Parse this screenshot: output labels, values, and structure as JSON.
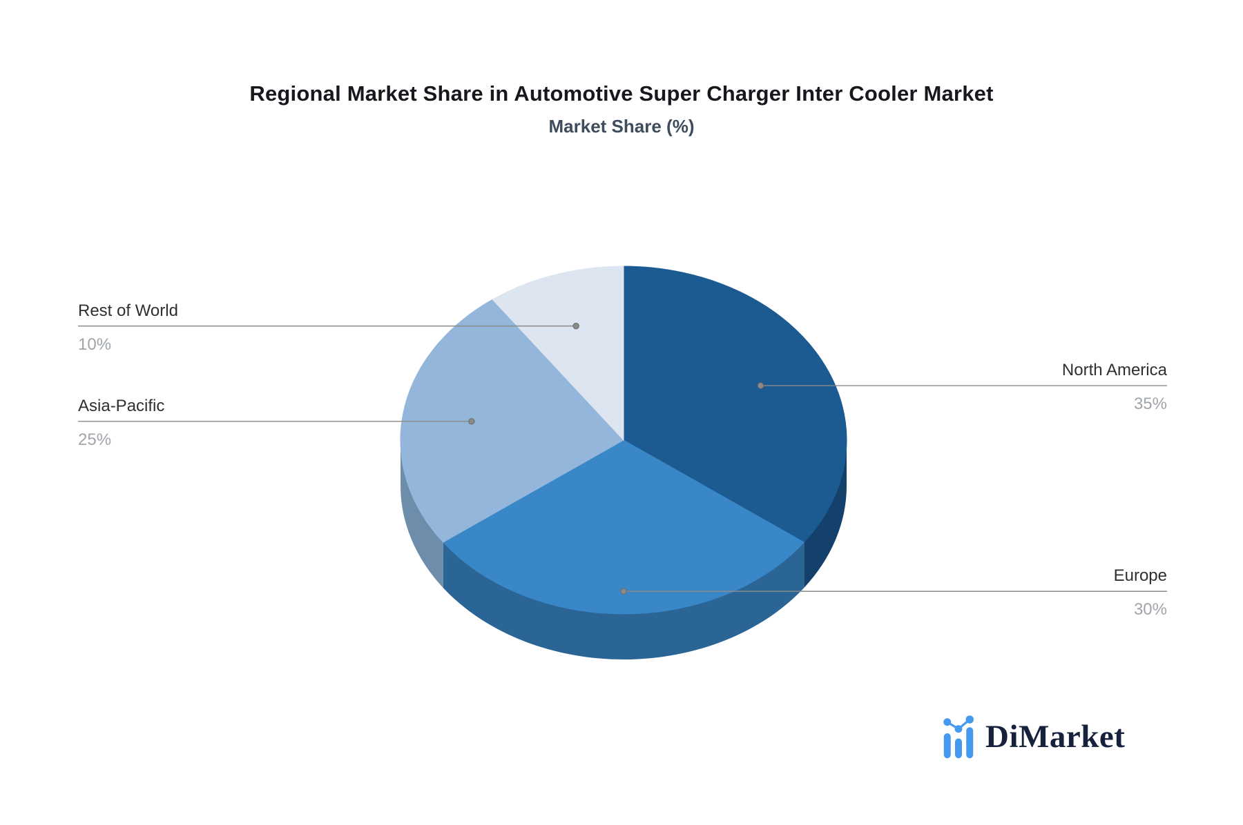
{
  "title": "Regional Market Share in Automotive Super Charger Inter Cooler Market",
  "subtitle": "Market Share (%)",
  "chart_data": {
    "type": "pie",
    "style": "3d-pie",
    "title": "Regional Market Share in Automotive Super Charger Inter Cooler Market",
    "subtitle": "Market Share (%)",
    "unit": "%",
    "legend": "none",
    "start_angle_deg": 0,
    "direction": "clockwise",
    "categories": [
      "North America",
      "Europe",
      "Asia-Pacific",
      "Rest of World"
    ],
    "values": [
      35,
      30,
      25,
      10
    ],
    "leader_line_color": "#8a8a8a",
    "slices": [
      {
        "name": "North America",
        "value": 35,
        "value_label": "35%",
        "color_top": "#1c5a92",
        "color_side": "#14416b",
        "label_side": "right"
      },
      {
        "name": "Europe",
        "value": 30,
        "value_label": "30%",
        "color_top": "#3a87c8",
        "color_side": "#2b6596",
        "label_side": "right"
      },
      {
        "name": "Asia-Pacific",
        "value": 25,
        "value_label": "25%",
        "color_top": "#93b6da",
        "color_side": "#6e8dab",
        "label_side": "left"
      },
      {
        "name": "Rest of World",
        "value": 10,
        "value_label": "10%",
        "color_top": "#dde5f0",
        "color_side": "#b9c4d6",
        "label_side": "left"
      }
    ]
  },
  "branding": {
    "logo_text": "DiMarket",
    "logo_icon": "bar-line-chart-icon",
    "icon_color": "#459af0",
    "text_color": "#16223c"
  }
}
